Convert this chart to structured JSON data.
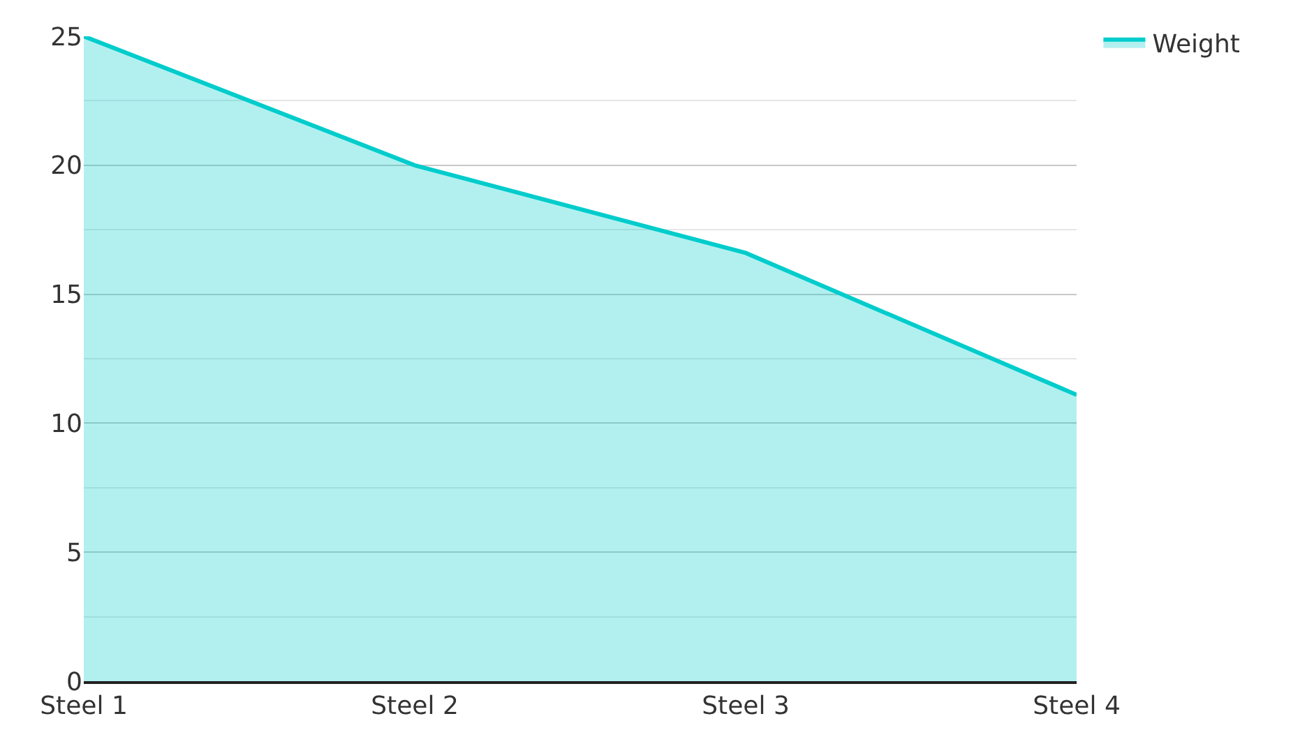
{
  "chart_data": {
    "type": "area",
    "categories": [
      "Steel 1",
      "Steel 2",
      "Steel 3",
      "Steel 4"
    ],
    "series": [
      {
        "name": "Weight",
        "color": "#00cccc",
        "values": [
          25,
          20,
          16.6,
          11.1
        ]
      }
    ],
    "ylim": [
      0,
      25
    ],
    "yticks": [
      0,
      5,
      10,
      15,
      20,
      25
    ],
    "grid": "y",
    "legend": "top right"
  }
}
